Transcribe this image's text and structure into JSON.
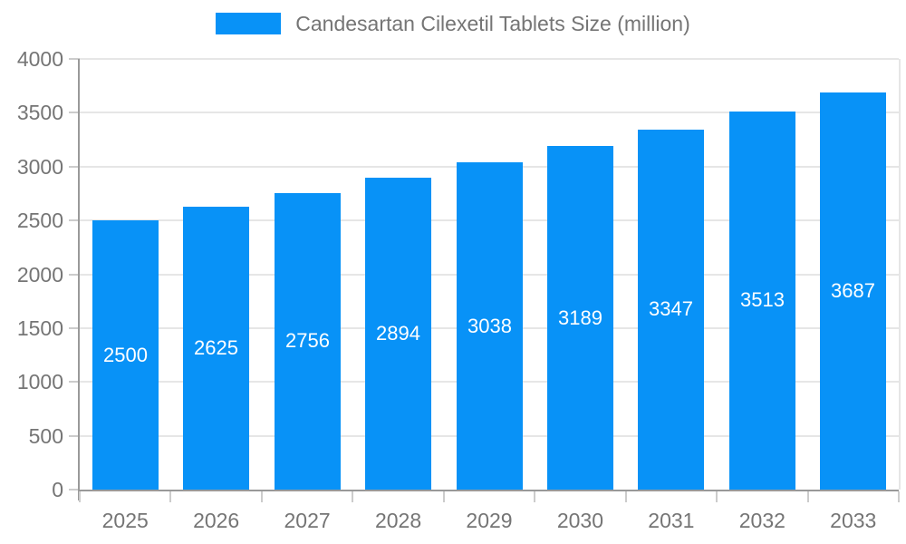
{
  "chart_data": {
    "type": "bar",
    "title": "Candesartan Cilexetil Tablets Size (million)",
    "categories": [
      "2025",
      "2026",
      "2027",
      "2028",
      "2029",
      "2030",
      "2031",
      "2032",
      "2033"
    ],
    "values": [
      2500,
      2625,
      2756,
      2894,
      3038,
      3189,
      3347,
      3513,
      3687
    ],
    "xlabel": "",
    "ylabel": "",
    "ylim": [
      0,
      4000
    ],
    "yticks": [
      0,
      500,
      1000,
      1500,
      2000,
      2500,
      3000,
      3500,
      4000
    ],
    "grid": true,
    "legend_position": "top",
    "bar_labels_visible": true
  },
  "colors": {
    "bar": "#0892f7",
    "bar_label": "#ffffff",
    "axis_text": "#757575",
    "grid_line": "#e6e6e6",
    "tick_mark": "#cccccc",
    "axis_line": "#999999",
    "background": "#ffffff"
  }
}
